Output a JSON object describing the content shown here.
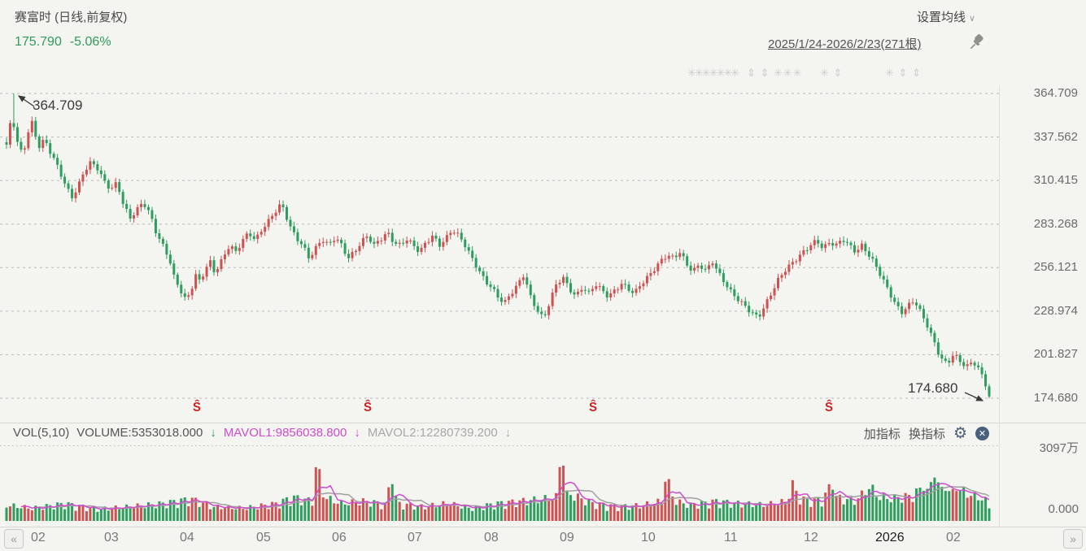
{
  "header": {
    "title": "赛富时 (日线,前复权)",
    "price": "175.790",
    "change": "-5.06%",
    "ma_settings_label": "设置均线",
    "chevron": "∨",
    "range_label": "2025/1/24-2026/2/23(271根)"
  },
  "watermarks": [
    {
      "x": 845,
      "text": "✳✳✳✳✳✳✳",
      "tight": true
    },
    {
      "x": 918,
      "text": "⇕ ⇕ ✳✳✳",
      "tight": false
    },
    {
      "x": 1008,
      "text": "✳ ⇕",
      "tight": false
    },
    {
      "x": 1088,
      "text": "✳ ⇕ ⇕",
      "tight": false
    }
  ],
  "price_axis": {
    "labels": [
      "364.709",
      "337.562",
      "310.415",
      "283.268",
      "256.121",
      "228.974",
      "201.827",
      "174.680"
    ]
  },
  "annotations": {
    "high": "364.709",
    "low": "174.680"
  },
  "dividend_markers": {
    "glyph": "Ŝ",
    "positions_x": [
      243,
      453,
      730,
      1020
    ]
  },
  "volume_header": {
    "vol_label": "VOL(5,10)",
    "volume_label": "VOLUME:5353018.000",
    "mavol1_label": "MAVOL1:9856038.800",
    "mavol2_label": "MAVOL2:12280739.200",
    "down_arrow": "↓",
    "add_indicator": "加指标",
    "switch_indicator": "换指标",
    "gear_glyph": "⚙",
    "close_glyph": "✕"
  },
  "volume_axis": {
    "max_label": "3097万",
    "min_label": "0.000"
  },
  "x_axis": {
    "prev_button": "«",
    "next_button": "»",
    "months": [
      {
        "text": "02",
        "x": 38,
        "current": false
      },
      {
        "text": "03",
        "x": 128,
        "current": false
      },
      {
        "text": "04",
        "x": 221,
        "current": false
      },
      {
        "text": "05",
        "x": 315,
        "current": false
      },
      {
        "text": "06",
        "x": 408,
        "current": false
      },
      {
        "text": "07",
        "x": 501,
        "current": false
      },
      {
        "text": "08",
        "x": 595,
        "current": false
      },
      {
        "text": "09",
        "x": 688,
        "current": false
      },
      {
        "text": "10",
        "x": 788,
        "current": false
      },
      {
        "text": "11",
        "x": 890,
        "current": false
      },
      {
        "text": "12",
        "x": 988,
        "current": false
      },
      {
        "text": "2026",
        "x": 1076,
        "current": true
      },
      {
        "text": "02",
        "x": 1163,
        "current": false
      }
    ]
  },
  "colors": {
    "up": "#cf5250",
    "down": "#2d9e5d",
    "mavol1": "#cf4ccf",
    "mavol2": "#a0a0a0",
    "accent_green": "#2f9c5a",
    "marker_red": "#cc2222",
    "grid": "#b0b0b0",
    "separator": "#d6d6d2",
    "bg": "#f4f4f1"
  },
  "chart_data": {
    "type": "candlestick+volume",
    "title": "赛富时 (日线,前复权)",
    "symbol_name": "赛富时",
    "period": "日线",
    "adjustment": "前复权",
    "last_price": 175.79,
    "change_pct": -5.06,
    "bars_count": 271,
    "date_range": [
      "2025/1/24",
      "2026/2/23"
    ],
    "y_axis_ticks": [
      364.709,
      337.562,
      310.415,
      283.268,
      256.121,
      228.974,
      201.827,
      174.68
    ],
    "ylim": [
      174.68,
      364.709
    ],
    "high_annotation": 364.709,
    "low_annotation": 174.68,
    "volume_current": 5353018.0,
    "mavol1": 9856038.8,
    "mavol2": 12280739.2,
    "volume_axis_max_label": "3097万",
    "volume_axis_min": 0.0,
    "x_months": [
      "02",
      "03",
      "04",
      "05",
      "06",
      "07",
      "08",
      "09",
      "10",
      "11",
      "12",
      "2026",
      "02"
    ],
    "approximate": true,
    "close_anchors": [
      [
        8,
        332
      ],
      [
        14,
        350
      ],
      [
        17,
        345
      ],
      [
        22,
        333
      ],
      [
        28,
        326
      ],
      [
        34,
        340
      ],
      [
        40,
        347
      ],
      [
        47,
        331
      ],
      [
        55,
        336
      ],
      [
        63,
        327
      ],
      [
        72,
        318
      ],
      [
        80,
        308
      ],
      [
        88,
        300
      ],
      [
        95,
        305
      ],
      [
        103,
        316
      ],
      [
        112,
        322
      ],
      [
        120,
        318
      ],
      [
        128,
        310
      ],
      [
        136,
        305
      ],
      [
        144,
        309
      ],
      [
        152,
        295
      ],
      [
        160,
        287
      ],
      [
        168,
        292
      ],
      [
        176,
        297
      ],
      [
        184,
        290
      ],
      [
        192,
        278
      ],
      [
        200,
        270
      ],
      [
        208,
        262
      ],
      [
        214,
        250
      ],
      [
        220,
        244
      ],
      [
        228,
        236
      ],
      [
        234,
        240
      ],
      [
        240,
        252
      ],
      [
        246,
        247
      ],
      [
        252,
        255
      ],
      [
        258,
        260
      ],
      [
        264,
        253
      ],
      [
        270,
        258
      ],
      [
        276,
        264
      ],
      [
        282,
        270
      ],
      [
        290,
        266
      ],
      [
        298,
        273
      ],
      [
        306,
        278
      ],
      [
        314,
        273
      ],
      [
        322,
        280
      ],
      [
        330,
        285
      ],
      [
        338,
        291
      ],
      [
        346,
        296
      ],
      [
        352,
        288
      ],
      [
        358,
        280
      ],
      [
        364,
        275
      ],
      [
        372,
        270
      ],
      [
        380,
        262
      ],
      [
        388,
        268
      ],
      [
        396,
        274
      ],
      [
        404,
        270
      ],
      [
        412,
        275
      ],
      [
        420,
        270
      ],
      [
        428,
        262
      ],
      [
        436,
        266
      ],
      [
        444,
        272
      ],
      [
        452,
        276
      ],
      [
        460,
        270
      ],
      [
        468,
        274
      ],
      [
        476,
        278
      ],
      [
        484,
        272
      ],
      [
        492,
        270
      ],
      [
        500,
        274
      ],
      [
        508,
        270
      ],
      [
        516,
        266
      ],
      [
        524,
        272
      ],
      [
        532,
        276
      ],
      [
        540,
        270
      ],
      [
        548,
        274
      ],
      [
        556,
        280
      ],
      [
        564,
        276
      ],
      [
        572,
        270
      ],
      [
        580,
        262
      ],
      [
        588,
        255
      ],
      [
        596,
        248
      ],
      [
        604,
        244
      ],
      [
        612,
        238
      ],
      [
        620,
        234
      ],
      [
        628,
        240
      ],
      [
        636,
        245
      ],
      [
        644,
        252
      ],
      [
        652,
        238
      ],
      [
        660,
        230
      ],
      [
        668,
        224
      ],
      [
        676,
        235
      ],
      [
        684,
        246
      ],
      [
        692,
        250
      ],
      [
        700,
        243
      ],
      [
        708,
        238
      ],
      [
        716,
        244
      ],
      [
        724,
        240
      ],
      [
        732,
        246
      ],
      [
        740,
        242
      ],
      [
        748,
        238
      ],
      [
        756,
        242
      ],
      [
        764,
        246
      ],
      [
        772,
        243
      ],
      [
        780,
        240
      ],
      [
        788,
        246
      ],
      [
        796,
        250
      ],
      [
        804,
        255
      ],
      [
        812,
        260
      ],
      [
        820,
        264
      ],
      [
        828,
        262
      ],
      [
        836,
        266
      ],
      [
        844,
        258
      ],
      [
        852,
        254
      ],
      [
        860,
        258
      ],
      [
        868,
        254
      ],
      [
        876,
        260
      ],
      [
        884,
        252
      ],
      [
        892,
        246
      ],
      [
        900,
        240
      ],
      [
        908,
        236
      ],
      [
        916,
        232
      ],
      [
        924,
        228
      ],
      [
        932,
        225
      ],
      [
        940,
        232
      ],
      [
        948,
        240
      ],
      [
        956,
        248
      ],
      [
        964,
        254
      ],
      [
        972,
        258
      ],
      [
        980,
        262
      ],
      [
        988,
        266
      ],
      [
        996,
        270
      ],
      [
        1004,
        273
      ],
      [
        1012,
        268
      ],
      [
        1020,
        272
      ],
      [
        1028,
        270
      ],
      [
        1036,
        274
      ],
      [
        1044,
        270
      ],
      [
        1052,
        266
      ],
      [
        1060,
        270
      ],
      [
        1068,
        264
      ],
      [
        1076,
        258
      ],
      [
        1084,
        250
      ],
      [
        1092,
        242
      ],
      [
        1100,
        234
      ],
      [
        1108,
        228
      ],
      [
        1116,
        232
      ],
      [
        1124,
        236
      ],
      [
        1132,
        228
      ],
      [
        1140,
        220
      ],
      [
        1148,
        210
      ],
      [
        1156,
        200
      ],
      [
        1164,
        196
      ],
      [
        1172,
        202
      ],
      [
        1180,
        198
      ],
      [
        1188,
        194
      ],
      [
        1196,
        198
      ],
      [
        1204,
        192
      ],
      [
        1210,
        186
      ],
      [
        1216,
        176
      ]
    ],
    "volume_anchors": [
      [
        8,
        0.2
      ],
      [
        40,
        0.16
      ],
      [
        80,
        0.22
      ],
      [
        120,
        0.15
      ],
      [
        160,
        0.18
      ],
      [
        200,
        0.22
      ],
      [
        235,
        0.28
      ],
      [
        260,
        0.18
      ],
      [
        300,
        0.16
      ],
      [
        340,
        0.22
      ],
      [
        360,
        0.3
      ],
      [
        384,
        0.25
      ],
      [
        390,
        0.95
      ],
      [
        398,
        0.3
      ],
      [
        420,
        0.22
      ],
      [
        450,
        0.25
      ],
      [
        474,
        0.2
      ],
      [
        480,
        0.63
      ],
      [
        488,
        0.22
      ],
      [
        520,
        0.18
      ],
      [
        550,
        0.22
      ],
      [
        580,
        0.16
      ],
      [
        610,
        0.22
      ],
      [
        640,
        0.25
      ],
      [
        670,
        0.28
      ],
      [
        684,
        0.3
      ],
      [
        690,
        0.97
      ],
      [
        698,
        0.35
      ],
      [
        710,
        0.3
      ],
      [
        730,
        0.22
      ],
      [
        760,
        0.18
      ],
      [
        790,
        0.2
      ],
      [
        814,
        0.25
      ],
      [
        820,
        0.72
      ],
      [
        828,
        0.25
      ],
      [
        850,
        0.2
      ],
      [
        880,
        0.25
      ],
      [
        910,
        0.22
      ],
      [
        940,
        0.2
      ],
      [
        968,
        0.25
      ],
      [
        975,
        0.6
      ],
      [
        982,
        0.28
      ],
      [
        1000,
        0.25
      ],
      [
        1014,
        0.3
      ],
      [
        1020,
        0.55
      ],
      [
        1028,
        0.3
      ],
      [
        1050,
        0.25
      ],
      [
        1062,
        0.35
      ],
      [
        1068,
        0.45
      ],
      [
        1080,
        0.3
      ],
      [
        1100,
        0.28
      ],
      [
        1120,
        0.32
      ],
      [
        1140,
        0.45
      ],
      [
        1148,
        0.62
      ],
      [
        1156,
        0.5
      ],
      [
        1164,
        0.4
      ],
      [
        1172,
        0.45
      ],
      [
        1180,
        0.38
      ],
      [
        1190,
        0.35
      ],
      [
        1200,
        0.3
      ],
      [
        1210,
        0.28
      ],
      [
        1216,
        0.17
      ]
    ],
    "render": {
      "wiggle": 1.4,
      "wick_base": 1.2,
      "wick_var": 1.6
    }
  }
}
